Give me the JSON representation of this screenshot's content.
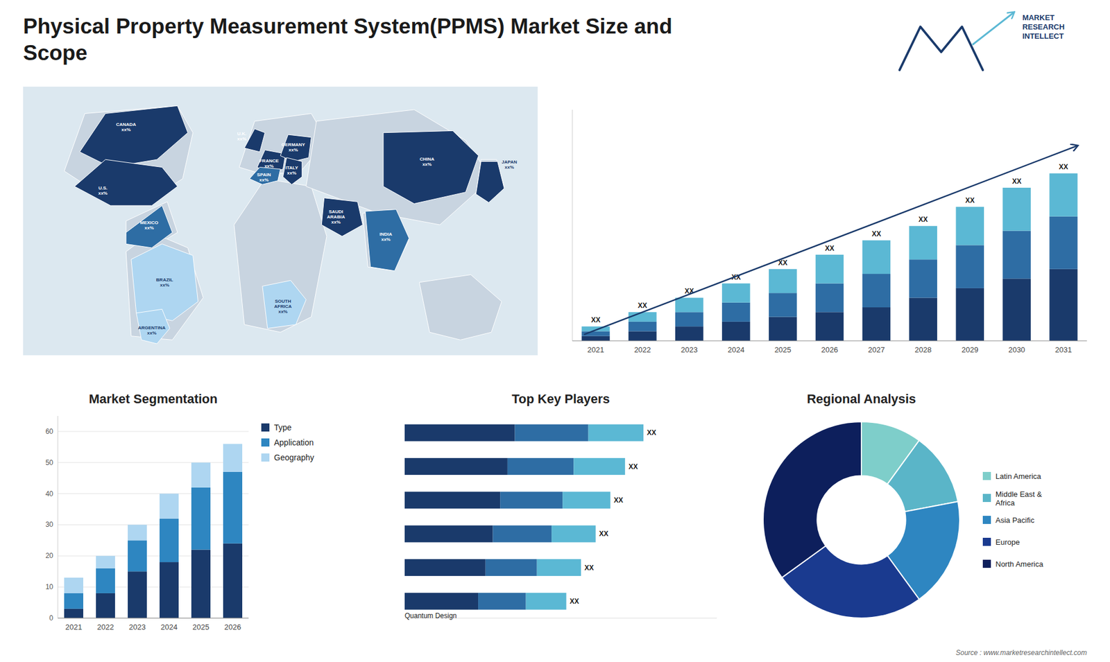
{
  "chart_data": [
    {
      "type": "bar",
      "title": "Physical Property Measurement System(PPMS) Market Size and\nScope",
      "stacked": true,
      "categories": [
        "2021",
        "2022",
        "2023",
        "2024",
        "2025",
        "2026",
        "2027",
        "2028",
        "2029",
        "2030",
        "2031"
      ],
      "series": [
        {
          "color": "#1a3a6b",
          "values": [
            1,
            2,
            3,
            4,
            5,
            6,
            7,
            9,
            11,
            13,
            15
          ]
        },
        {
          "color": "#2e6da4",
          "values": [
            1,
            2,
            3,
            4,
            5,
            6,
            7,
            8,
            9,
            10,
            11
          ]
        },
        {
          "color": "#5bb8d4",
          "values": [
            1,
            2,
            3,
            4,
            5,
            6,
            7,
            7,
            8,
            9,
            9
          ]
        }
      ],
      "ylim": [
        0,
        48.3
      ],
      "tick_labels": "x",
      "annotations": [
        "XX",
        "MARKET\nRESEARCH\nINTELLECT",
        "Source : www.marketresearchintellect.com"
      ]
    },
    {
      "type": "map",
      "annotations": [
        "CANADA\nxx%",
        "U.S.\nxx%",
        "MEXICO\nxx%",
        "BRAZIL\nxx%",
        "ARGENTINA\nxx%",
        "U.K.\nxx%",
        "FRANCE\nxx%",
        "SPAIN\nxx%",
        "GERMANY\nxx%",
        "ITALY\nxx%",
        "SAUDI\nARABIA\nxx%",
        "SOUTH\nAFRICA\nxx%",
        "CHINA\nxx%",
        "INDIA\nxx%",
        "JAPAN\nxx%"
      ]
    },
    {
      "type": "bar",
      "title": "Market Segmentation",
      "stacked": true,
      "categories": [
        "2021",
        "2022",
        "2023",
        "2024",
        "2025",
        "2026"
      ],
      "series": [
        {
          "name": "Type",
          "color": "#1a3a6b",
          "values": [
            3,
            8,
            15,
            18,
            22,
            24
          ]
        },
        {
          "name": "Application",
          "color": "#2e86c1",
          "values": [
            5,
            8,
            10,
            14,
            20,
            23
          ]
        },
        {
          "name": "Geography",
          "color": "#aed6f1",
          "values": [
            5,
            4,
            5,
            8,
            8,
            9
          ]
        }
      ],
      "ylim": [
        0,
        65
      ],
      "yticks": [
        0,
        10,
        20,
        30,
        40,
        50,
        60
      ],
      "grid": true,
      "legend": "right"
    },
    {
      "type": "bar",
      "orientation": "horizontal",
      "stacked": true,
      "title": "Top Key Players",
      "categories": [
        null,
        null,
        null,
        null,
        null,
        "Quantum Design"
      ],
      "series": [
        {
          "color": "#1a3a6b",
          "values": [
            0.3,
            0.28,
            0.26,
            0.24,
            0.22,
            0.2
          ]
        },
        {
          "color": "#2e6da4",
          "values": [
            0.2,
            0.18,
            0.17,
            0.16,
            0.14,
            0.13
          ]
        },
        {
          "color": "#5bb8d4",
          "values": [
            0.15,
            0.14,
            0.13,
            0.12,
            0.12,
            0.11
          ]
        }
      ],
      "xlim": [
        0,
        0.85
      ],
      "tick_labels": false,
      "annotations": [
        "XX"
      ]
    },
    {
      "type": "pie",
      "title": "Regional Analysis",
      "categories": [
        "Latin America",
        "Middle East &\nAfrica",
        "Asia Pacific",
        "Europe",
        "North America"
      ],
      "values": [
        10,
        12,
        18,
        25,
        35
      ],
      "colors": [
        "#7ececa",
        "#5ab5c8",
        "#2e86c1",
        "#1a3a8f",
        "#0d1f5c"
      ],
      "legend": "right"
    }
  ]
}
